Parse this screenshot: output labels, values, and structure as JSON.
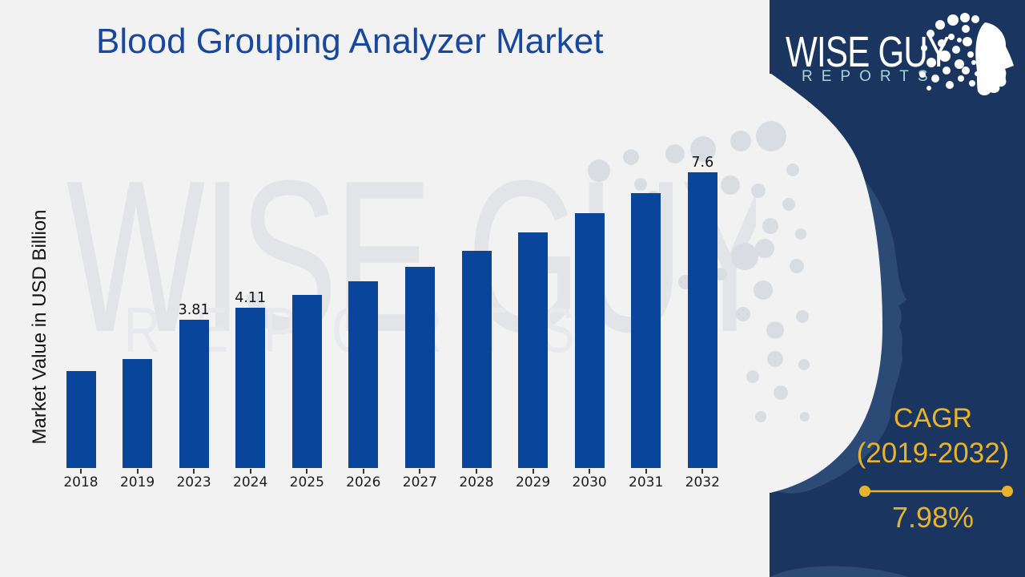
{
  "page": {
    "background": "#f2f2f3"
  },
  "title": "Blood Grouping Analyzer Market",
  "title_color": "#17479e",
  "watermark": {
    "line1": "WISE GUY",
    "line2": "REPORTS"
  },
  "logo": {
    "line1": "WISE GUY",
    "line2": "REPORTS",
    "head_icon": "head-profile-dots-icon"
  },
  "panel": {
    "background": "#1a3560",
    "accent": "#e8b42a",
    "cagr_label": "CAGR",
    "cagr_period": "(2019-2032)",
    "cagr_value": "7.98%"
  },
  "chart_data": {
    "type": "bar",
    "title": "Blood Grouping Analyzer Market",
    "xlabel": "",
    "ylabel": "Market Value in USD Billion",
    "categories": [
      "2018",
      "2019",
      "2023",
      "2024",
      "2025",
      "2026",
      "2027",
      "2028",
      "2029",
      "2030",
      "2031",
      "2032"
    ],
    "values": [
      2.5,
      2.8,
      3.81,
      4.11,
      4.45,
      4.79,
      5.18,
      5.59,
      6.05,
      6.55,
      7.06,
      7.6
    ],
    "value_labels": [
      "",
      "",
      "3.81",
      "4.11",
      "",
      "",
      "",
      "",
      "",
      "",
      "",
      "7.6"
    ],
    "bar_color": "#09459a",
    "ylim": [
      0,
      8.2
    ],
    "grid": false,
    "legend": null
  }
}
